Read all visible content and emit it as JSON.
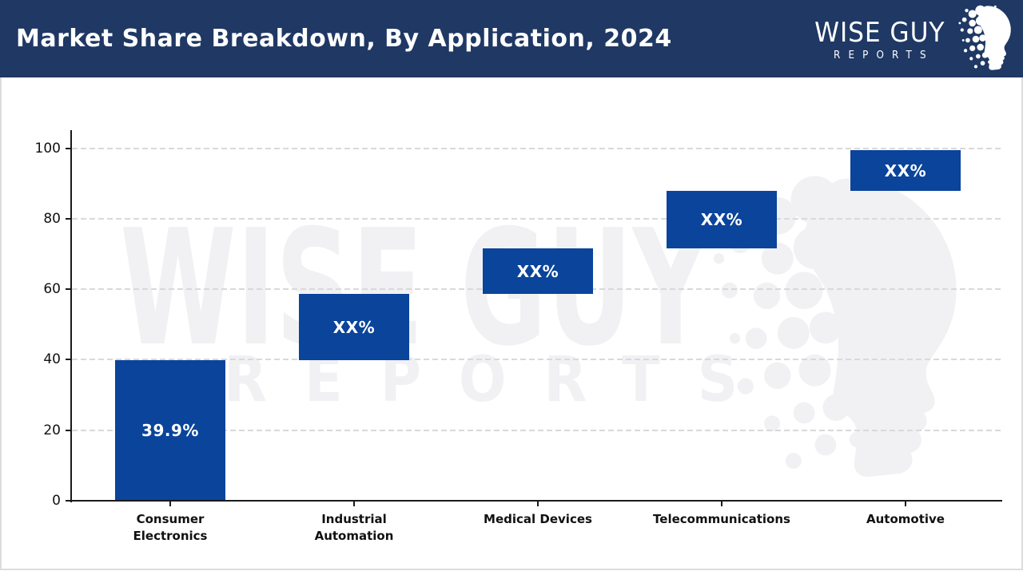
{
  "header": {
    "title": "Market Share Breakdown, By Application, 2024",
    "logo_line1": "WISE GUY",
    "logo_line2": "REPORTS"
  },
  "watermark": {
    "line1": "WISE GUY",
    "line2": "REPORTS"
  },
  "colors": {
    "header_bg": "#1f3864",
    "bar": "#0a449b",
    "grid": "#d9d9d9",
    "axis": "#1a1a1a",
    "bar_label": "#ffffff",
    "tick_label": "#111111",
    "watermark": "#f1f1f4"
  },
  "chart_data": {
    "type": "bar",
    "subtype": "waterfall (stacked floating segments)",
    "title": "Market Share Breakdown, By Application, 2024",
    "xlabel": "",
    "ylabel": "",
    "legend": "none",
    "grid": "horizontal dashed",
    "yticks": [
      0,
      20,
      40,
      60,
      80,
      100
    ],
    "ylim": [
      0,
      105
    ],
    "categories": [
      "Consumer\nElectronics",
      "Industrial\nAutomation",
      "Medical Devices",
      "Telecommunications",
      "Automotive"
    ],
    "segments": [
      {
        "category": "Consumer Electronics",
        "start": 0,
        "end": 39.9,
        "label": "39.9%"
      },
      {
        "category": "Industrial Automation",
        "start": 39.9,
        "end": 58.6,
        "label": "XX%"
      },
      {
        "category": "Medical Devices",
        "start": 58.6,
        "end": 71.5,
        "label": "XX%"
      },
      {
        "category": "Telecommunications",
        "start": 71.5,
        "end": 87.8,
        "label": "XX%"
      },
      {
        "category": "Automotive",
        "start": 87.8,
        "end": 99.4,
        "label": "XX%"
      }
    ],
    "bar_color": "#0a449b"
  }
}
